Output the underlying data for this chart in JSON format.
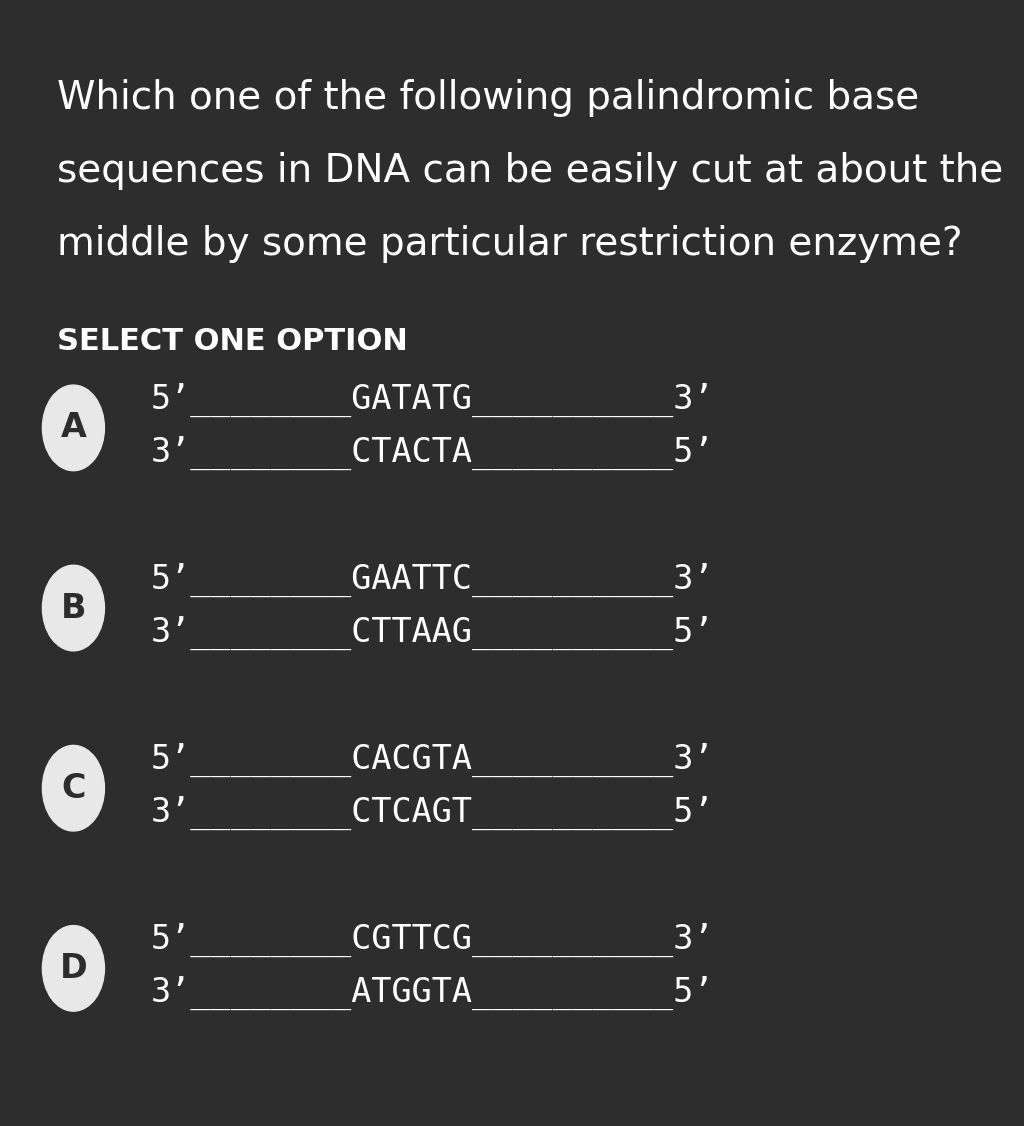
{
  "background_color": "#2d2d2d",
  "text_color": "#ffffff",
  "circle_bg": "#e8e8e8",
  "circle_text": "#2d2d2d",
  "title_lines": [
    "Which one of the following palindromic base",
    "sequences in DNA can be easily cut at about the",
    "middle by some particular restriction enzyme?"
  ],
  "subtitle": "SELECT ONE OPTION",
  "options": [
    {
      "label": "A",
      "line1": "5’________GATATG__________3’",
      "line2": "3’________CTACTA__________5’"
    },
    {
      "label": "B",
      "line1": "5’________GAATTC__________3’",
      "line2": "3’________CTTAAG__________5’"
    },
    {
      "label": "C",
      "line1": "5’________CACGTA__________3’",
      "line2": "3’________CTCAGT__________5’"
    },
    {
      "label": "D",
      "line1": "5’________CGTTCG__________3’",
      "line2": "3’________ATGGTA__________5’"
    }
  ],
  "title_fontsize": 28,
  "subtitle_fontsize": 22,
  "option_fontsize": 24,
  "label_fontsize": 24,
  "figsize": [
    10.24,
    11.26
  ],
  "dpi": 100
}
